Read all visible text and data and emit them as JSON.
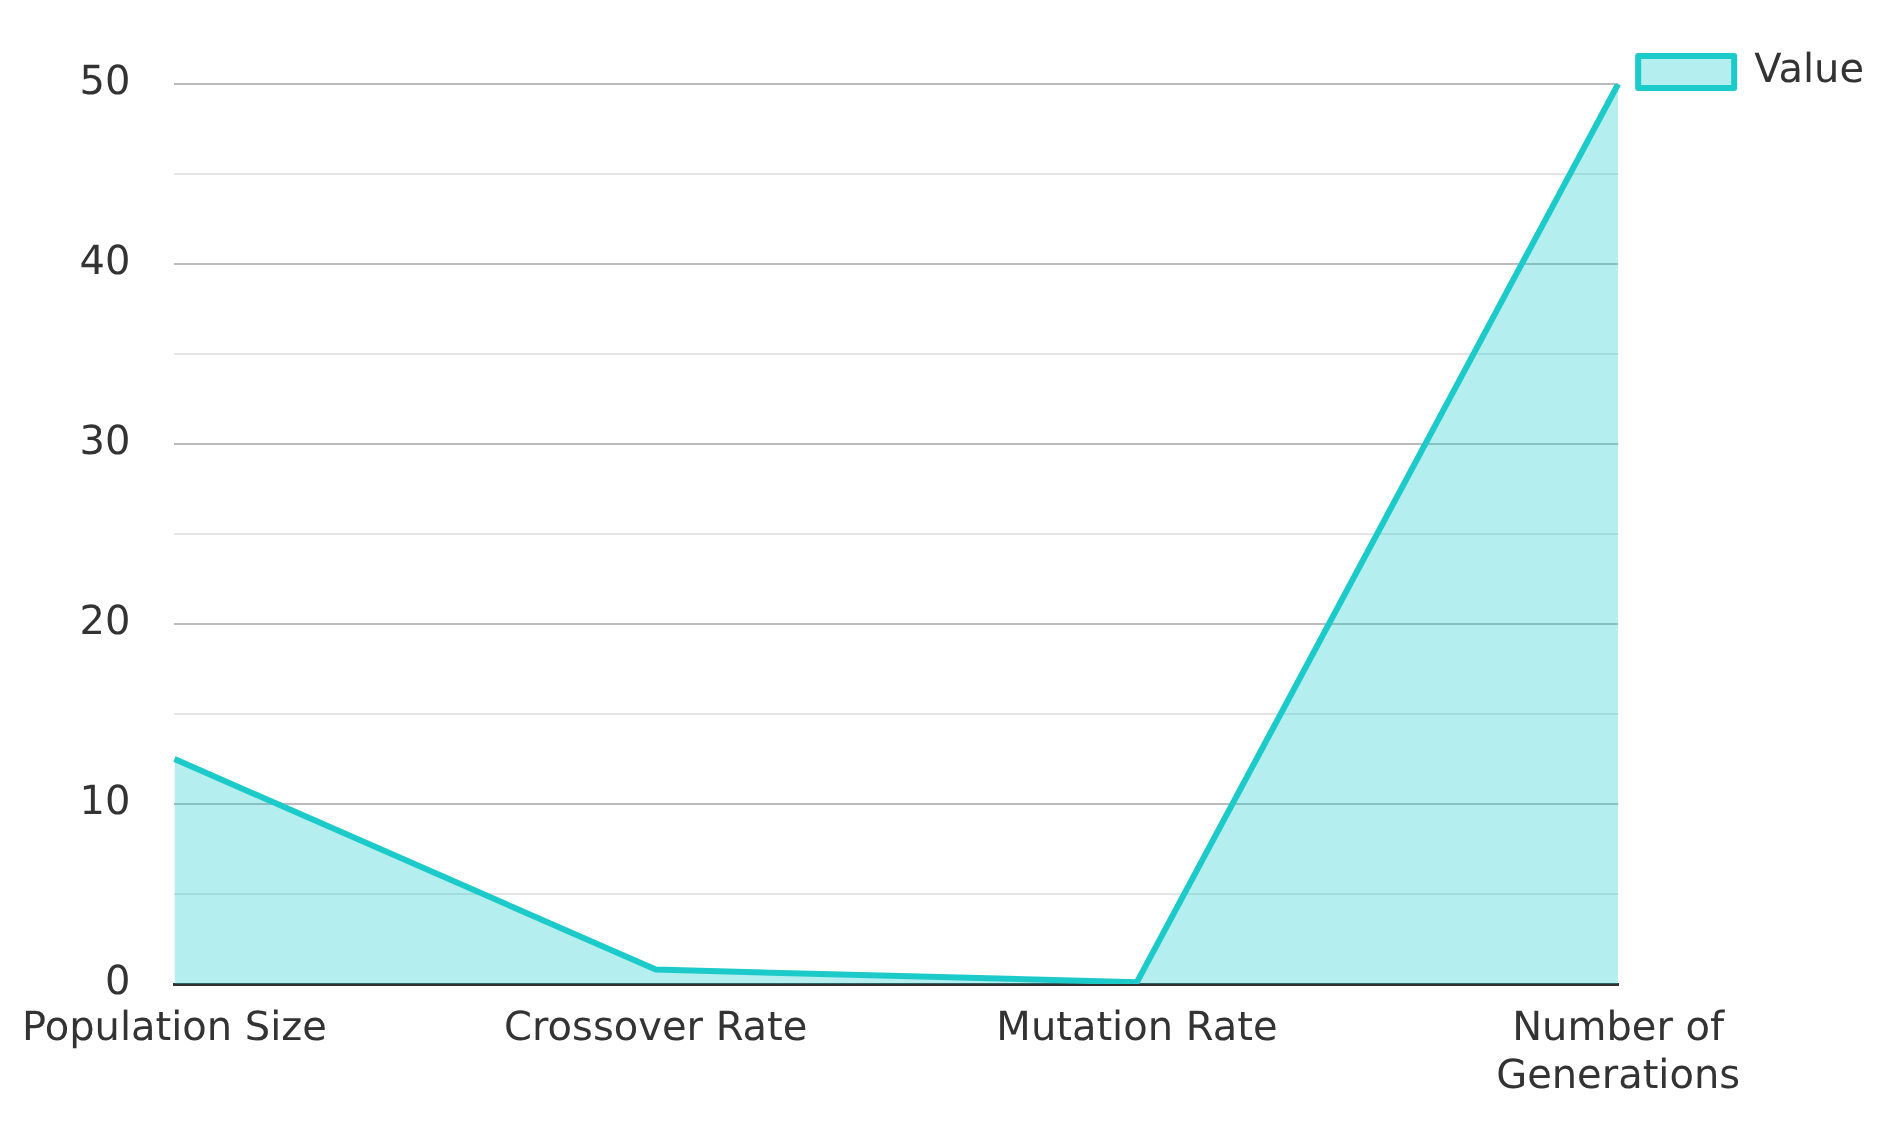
{
  "chart_data": {
    "type": "area",
    "categories": [
      "Population Size",
      "Crossover Rate",
      "Mutation Rate",
      "Number of Generations"
    ],
    "series": [
      {
        "name": "Value",
        "color": "#1ccaca",
        "values": [
          12.5,
          0.8,
          0.1,
          50
        ]
      }
    ],
    "ylim": [
      0,
      50
    ],
    "yticks": [
      0,
      {
        "value": 5,
        "label": null
      },
      10,
      {
        "value": 15,
        "label": null
      },
      20,
      {
        "value": 25,
        "label": null
      },
      30,
      {
        "value": 35,
        "label": null
      },
      40,
      {
        "value": 45,
        "label": null
      },
      50
    ],
    "grid": "y",
    "legend": "top right"
  }
}
